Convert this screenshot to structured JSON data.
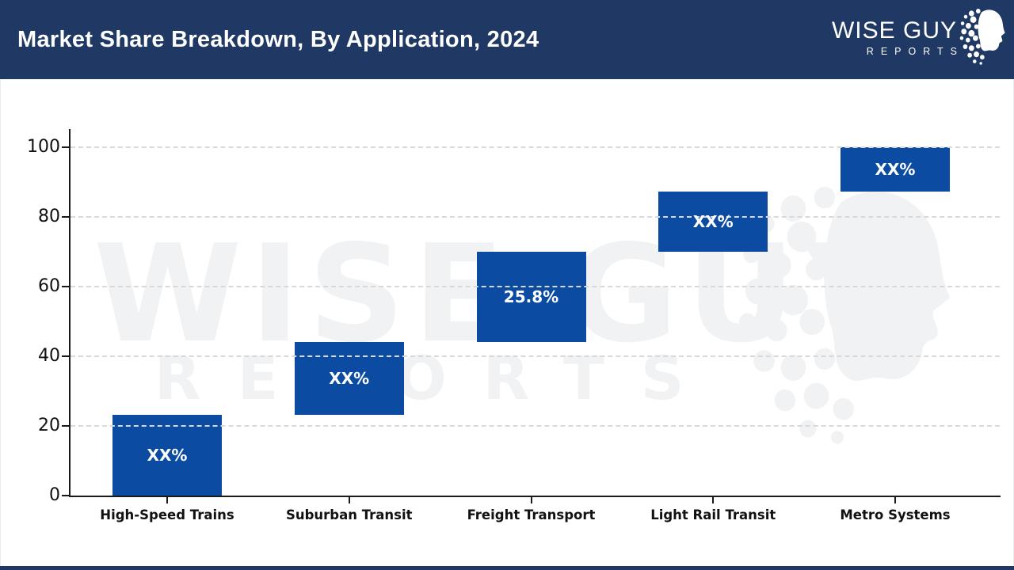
{
  "header": {
    "title": "Market Share Breakdown, By Application, 2024",
    "logo": {
      "name": "WISE GUY",
      "tagline": "REPORTS"
    }
  },
  "watermark": {
    "line1": "WISE GUY",
    "line2": "REPORTS"
  },
  "colors": {
    "header_bg": "#1f3864",
    "bar": "#0b4ba1",
    "bar_label": "#ffffff",
    "grid": "#d9d9d9",
    "axis": "#1a1a1a",
    "watermark": "#f1f2f4"
  },
  "chart_data": {
    "type": "bar",
    "subtype": "floating-waterfall",
    "title": "Market Share Breakdown, By Application, 2024",
    "xlabel": "",
    "ylabel": "",
    "ylim": [
      0,
      105
    ],
    "yticks": [
      0,
      20,
      40,
      60,
      80,
      100
    ],
    "grid": "horizontal-dashed",
    "legend": null,
    "categories": [
      "High-Speed Trains",
      "Suburban Transit",
      "Freight Transport",
      "Light Rail Transit",
      "Metro Systems"
    ],
    "segments": [
      {
        "category": "High-Speed Trains",
        "label": "XX%",
        "start": 0,
        "end": 23.2
      },
      {
        "category": "Suburban Transit",
        "label": "XX%",
        "start": 23.2,
        "end": 44.1
      },
      {
        "category": "Freight Transport",
        "label": "25.8%",
        "start": 44.1,
        "end": 69.9
      },
      {
        "category": "Light Rail Transit",
        "label": "XX%",
        "start": 69.9,
        "end": 87.3
      },
      {
        "category": "Metro Systems",
        "label": "XX%",
        "start": 87.3,
        "end": 100
      }
    ]
  }
}
